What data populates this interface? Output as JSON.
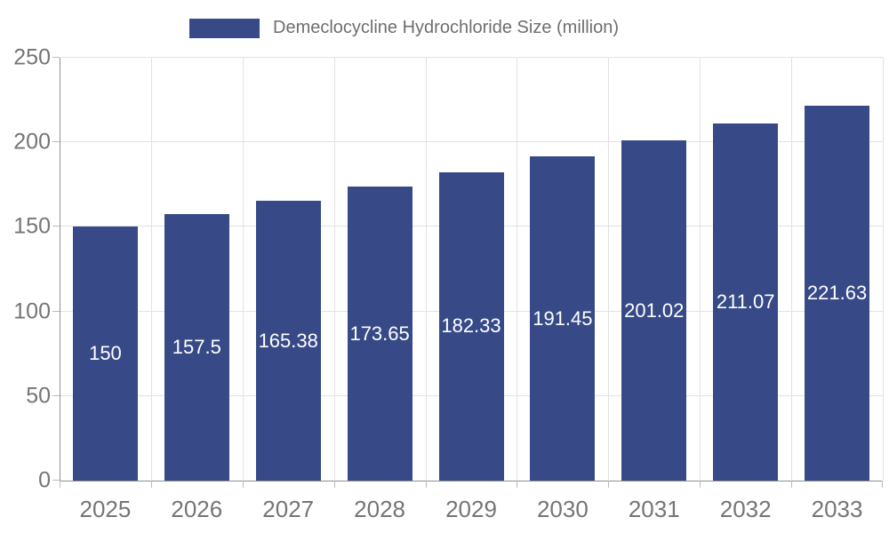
{
  "legend": {
    "label": "Demeclocycline Hydrochloride Size (million)",
    "swatch_color": "#374a87"
  },
  "chart_data": {
    "type": "bar",
    "title": "Demeclocycline Hydrochloride Size (million)",
    "categories": [
      "2025",
      "2026",
      "2027",
      "2028",
      "2029",
      "2030",
      "2031",
      "2032",
      "2033"
    ],
    "values": [
      150,
      157.5,
      165.38,
      173.65,
      182.33,
      191.45,
      201.02,
      211.07,
      221.63
    ],
    "value_labels": [
      "150",
      "157.5",
      "165.38",
      "173.65",
      "182.33",
      "191.45",
      "201.02",
      "211.07",
      "221.63"
    ],
    "xlabel": "",
    "ylabel": "",
    "ylim": [
      0,
      250
    ],
    "yticks": [
      0,
      50,
      100,
      150,
      200,
      250
    ],
    "ytick_labels": [
      "0",
      "50",
      "100",
      "150",
      "200",
      "250"
    ],
    "grid": true,
    "legend_position": "top",
    "colors": {
      "bar": "#374a87",
      "grid": "#e2e2e2",
      "axis": "#8f8f8f",
      "tick": "#bbbbbb",
      "tick_label": "#757575",
      "legend_text": "#6e6e6e",
      "value_label": "#ffffff",
      "background": "#ffffff"
    }
  }
}
